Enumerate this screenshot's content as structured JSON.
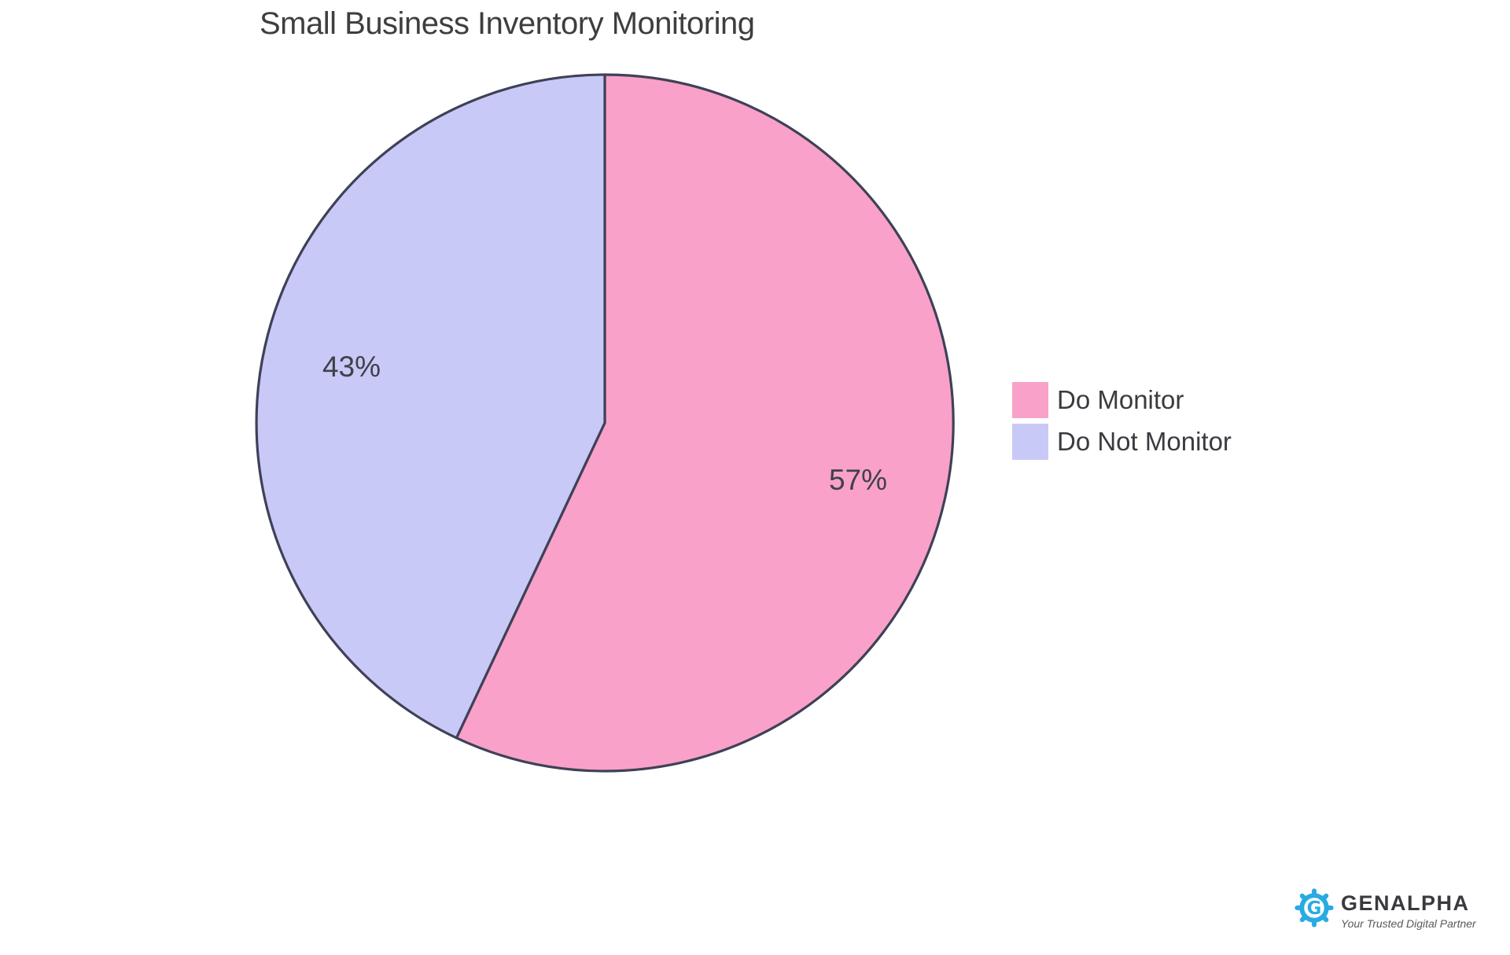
{
  "page": {
    "background": "#ffffff"
  },
  "chart_data": {
    "type": "pie",
    "title": "Small Business Inventory Monitoring",
    "categories": [
      "Do Monitor",
      "Do Not Monitor"
    ],
    "values": [
      57,
      43
    ],
    "slice_labels": [
      "57%",
      "43%"
    ],
    "colors": [
      "#F9A1C8",
      "#C9C9F7"
    ],
    "stroke_color": "#3E4157",
    "stroke_width": 3.2,
    "start_angle_deg": 0,
    "direction": "clockwise",
    "legend_position": "right",
    "title_color": "#3e3e3e",
    "label_color": "#3f4149"
  },
  "branding": {
    "name": "GENALPHA",
    "tagline": "Your Trusted Digital Partner",
    "accent_color": "#29ABE2"
  }
}
